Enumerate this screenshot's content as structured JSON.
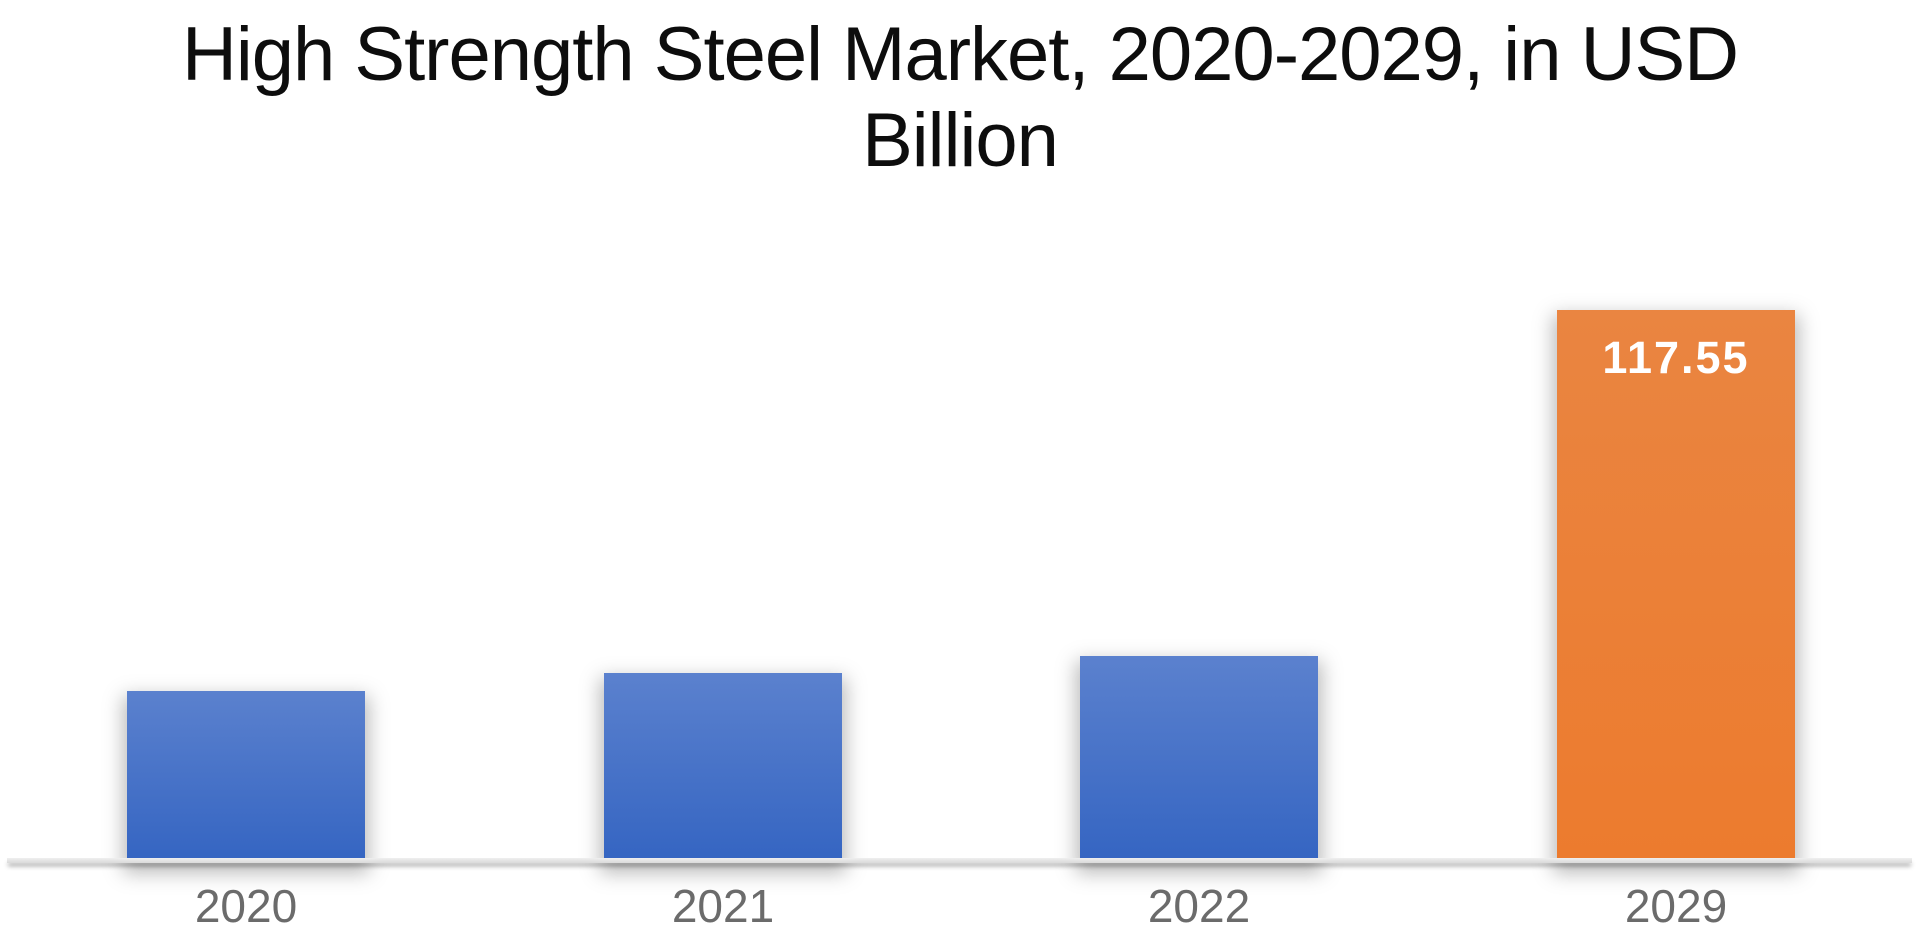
{
  "title": {
    "lines": [
      "High Strength Steel Market, 2020-2029, in USD",
      "Billion"
    ],
    "full_text": "High Strength Steel Market, 2020-2029, in USD Billion"
  },
  "chart_data": {
    "type": "bar",
    "title": "High Strength Steel Market, 2020-2029, in USD Billion",
    "categories": [
      "2020",
      "2021",
      "2022",
      "2029"
    ],
    "values": [
      36.2,
      40.0,
      43.6,
      117.55
    ],
    "data_labels": [
      "",
      "",
      "",
      "117.55"
    ],
    "bar_color_keys": [
      "blue",
      "blue",
      "blue",
      "orange"
    ],
    "xlabel": "",
    "ylabel": "",
    "ylim": [
      0,
      125
    ],
    "grid": false,
    "legend": false,
    "y_axis_visible": false,
    "x_axis_visible": true,
    "colors": {
      "bar_default": "#4472C4",
      "bar_default_gradient_top": "#5B81CE",
      "bar_default_gradient_bottom": "#3565C2",
      "bar_highlight": "#ED7D31",
      "bar_highlight_gradient_top": "#EA8541",
      "bar_highlight_gradient_bottom": "#EC7B2E",
      "axis_line": "#DADADA",
      "tick_label": "#6B6B6B",
      "data_label": "#FFFFFF",
      "title_text": "#0D0D0D",
      "background": "#FFFFFF"
    }
  }
}
